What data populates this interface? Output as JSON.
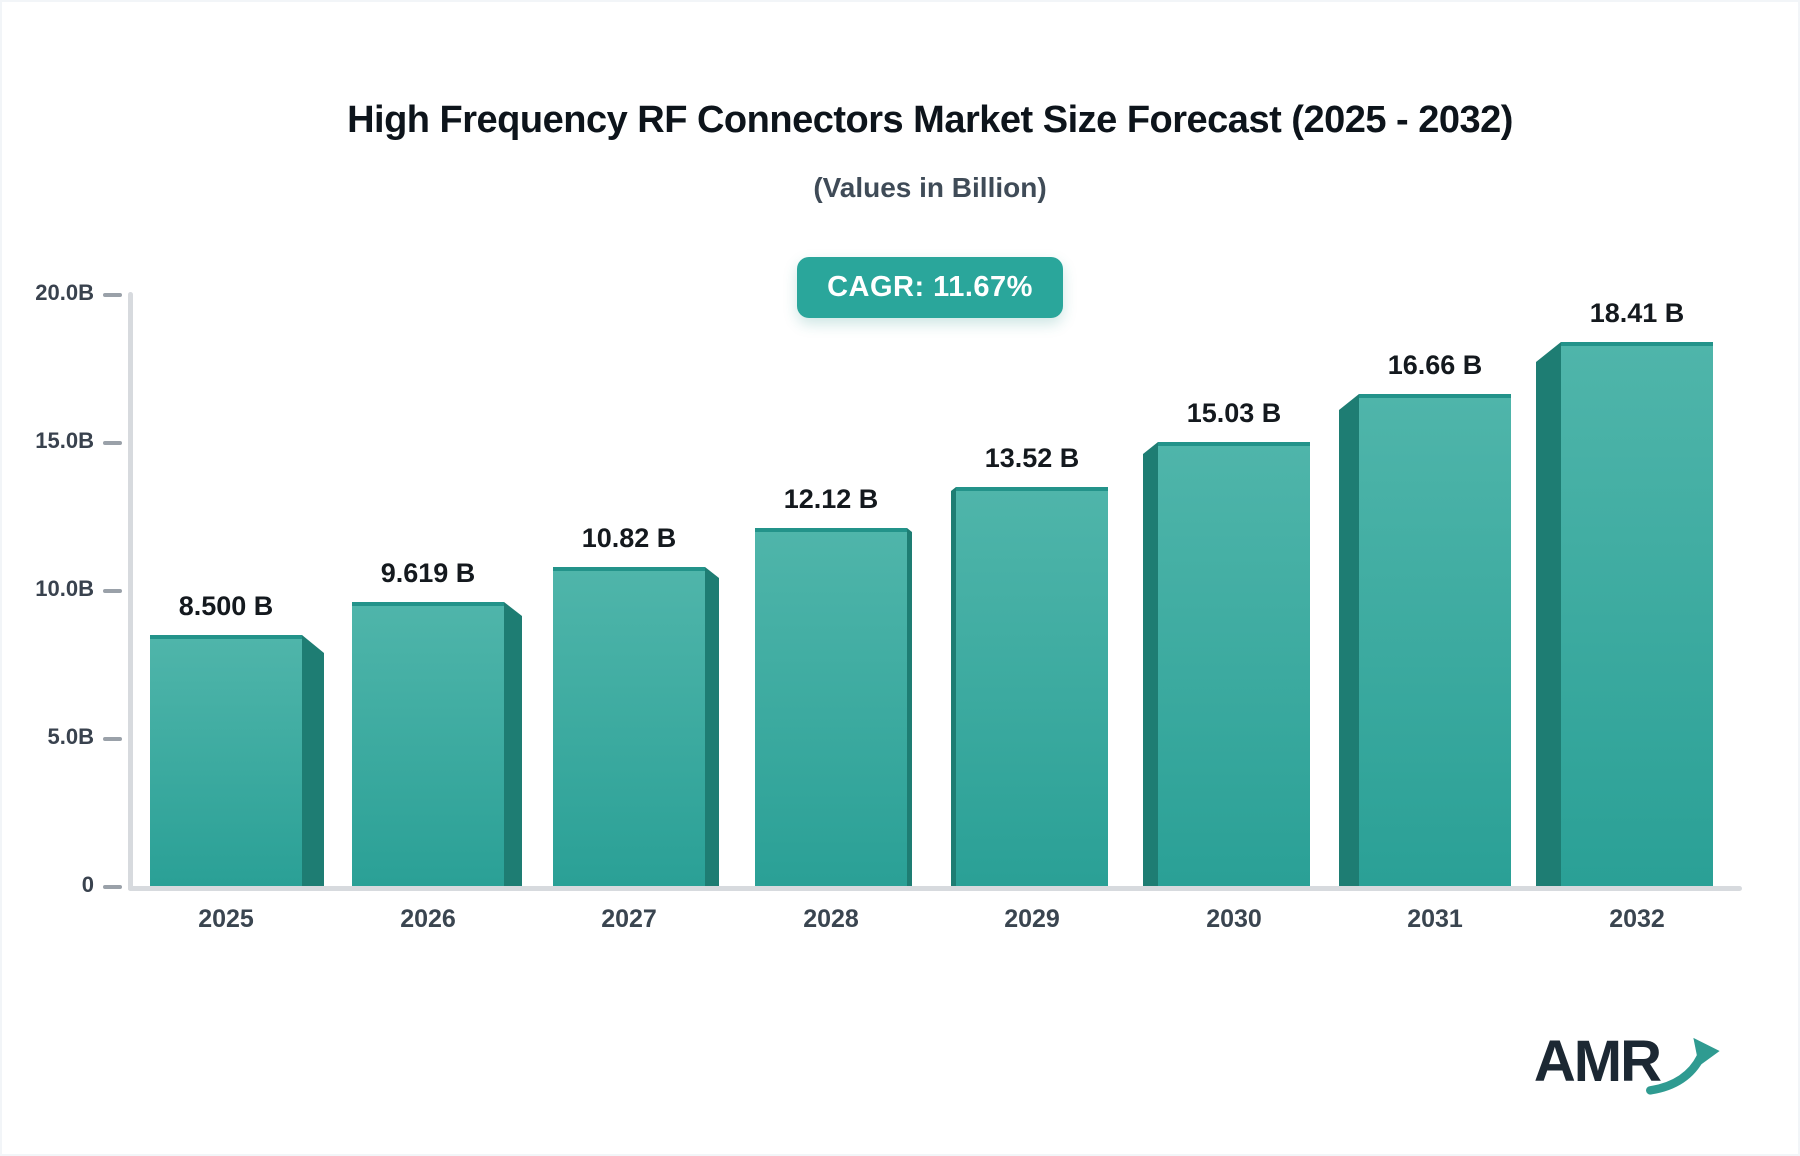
{
  "header": {
    "title": "High Frequency RF Connectors Market Size Forecast (2025 - 2032)",
    "subtitle": "(Values in Billion)"
  },
  "badge": {
    "label": "CAGR: 11.67%"
  },
  "chart_data": {
    "type": "bar",
    "title": "High Frequency RF Connectors Market Size Forecast (2025 - 2032)",
    "subtitle": "(Values in Billion)",
    "cagr_label": "CAGR: 11.67%",
    "categories": [
      "2025",
      "2026",
      "2027",
      "2028",
      "2029",
      "2030",
      "2031",
      "2032"
    ],
    "values": [
      8.5,
      9.619,
      10.82,
      12.12,
      13.52,
      15.03,
      16.66,
      18.41
    ],
    "value_labels": [
      "8.500 B",
      "9.619 B",
      "10.82 B",
      "12.12 B",
      "13.52 B",
      "15.03 B",
      "16.66 B",
      "18.41 B"
    ],
    "xlabel": "",
    "ylabel": "",
    "ylim": [
      0,
      20
    ],
    "yticks": [
      {
        "label": "20.0B",
        "value": 20
      },
      {
        "label": "15.0B",
        "value": 15
      },
      {
        "label": "10.0B",
        "value": 10
      },
      {
        "label": "5.0B",
        "value": 5
      },
      {
        "label": "0",
        "value": 0
      }
    ],
    "grid": false,
    "legend": "none",
    "bar_style": "3d-perspective"
  },
  "colors": {
    "bar_top": "#4fb5aa",
    "bar_bottom": "#2aa096",
    "bar_side": "#1e7d73",
    "bar_edge": "#23938a",
    "axis_line": "#d7dade",
    "tick": "#9aa1a9",
    "axis_text": "#39424e",
    "value_text": "#14191e",
    "year_text": "#3a4550",
    "title_text": "#0d141b",
    "subtitle_text": "#3f4b57",
    "badge_bg": "#2aa69b",
    "badge_text": "#ffffff",
    "logo_text": "#1c2833",
    "logo_arrow": "#2f9b91"
  },
  "logo": {
    "text": "AMR"
  }
}
